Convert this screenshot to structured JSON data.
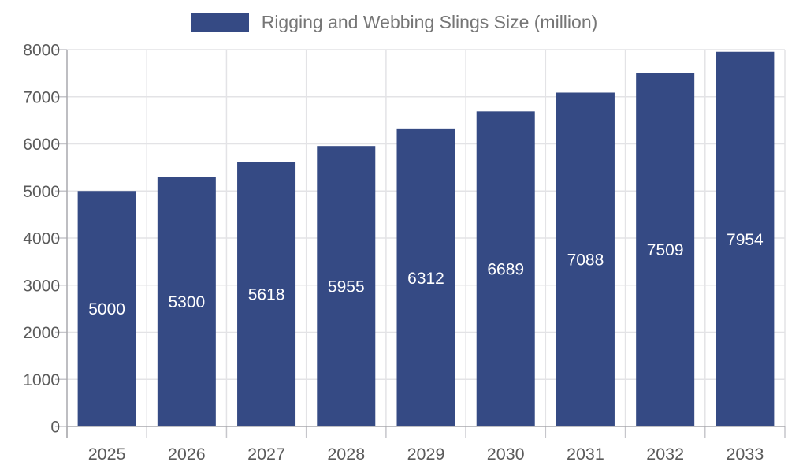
{
  "legend": {
    "label": "Rigging and Webbing Slings Size (million)"
  },
  "chart_data": {
    "type": "bar",
    "title": "Rigging and Webbing Slings Size (million)",
    "categories": [
      "2025",
      "2026",
      "2027",
      "2028",
      "2029",
      "2030",
      "2031",
      "2032",
      "2033"
    ],
    "values": [
      5000,
      5300,
      5618,
      5955,
      6312,
      6689,
      7088,
      7509,
      7954
    ],
    "xlabel": "",
    "ylabel": "",
    "ylim": [
      0,
      8000
    ],
    "ytick_step": 1000,
    "grid": true,
    "legend_position": "top",
    "bar_labels_inside": true
  },
  "colors": {
    "bar": "#354a84",
    "bar_label": "#ffffff",
    "grid_line": "#e3e3e6",
    "axis_line": "#a9a9ad",
    "tick_line": "#c6c6cb",
    "axis_text": "#5b5b5b",
    "legend_text": "#767676"
  }
}
